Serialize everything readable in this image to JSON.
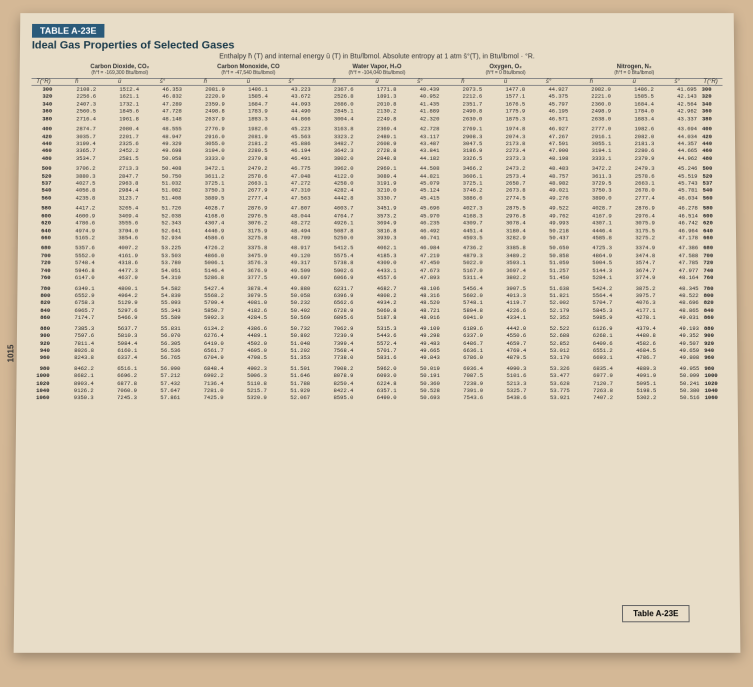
{
  "table_label": "TABLE A-23E",
  "title": "Ideal Gas Properties of Selected Gases",
  "enthalpy_note": "Enthalpy h̄ (T) and internal energy ū (T) in Btu/lbmol. Absolute entropy at 1 atm s̄°(T), in Btu/lbmol · °R.",
  "footer": "Table A-23E",
  "side_label": "1015",
  "gases": [
    {
      "name": "Carbon Dioxide, CO₂",
      "formula": "(h̄°f = -169,300 Btu/lbmol)"
    },
    {
      "name": "Carbon Monoxide, CO",
      "formula": "(h̄°f = -47,540 Btu/lbmol)"
    },
    {
      "name": "Water Vapor, H₂O",
      "formula": "(h̄°f = -104,040 Btu/lbmol)"
    },
    {
      "name": "Oxygen, O₂",
      "formula": "(h̄°f = 0 Btu/lbmol)"
    },
    {
      "name": "Nitrogen, N₂",
      "formula": "(h̄°f = 0 Btu/lbmol)"
    }
  ],
  "col_labels": {
    "tk": "T(°R)",
    "h": "h̄",
    "u": "ū",
    "s": "s̄°"
  },
  "rows": [
    {
      "t": 300,
      "d": [
        [
          "2108.2",
          "1512.4",
          "46.353"
        ],
        [
          "2081.9",
          "1486.1",
          "43.223"
        ],
        [
          "2367.6",
          "1771.8",
          "40.439"
        ],
        [
          "2073.5",
          "1477.8",
          "44.927"
        ],
        [
          "2082.0",
          "1486.2",
          "41.695"
        ]
      ]
    },
    {
      "t": 320,
      "d": [
        [
          "2256.6",
          "1621.1",
          "46.832"
        ],
        [
          "2220.9",
          "1585.4",
          "43.672"
        ],
        [
          "2526.8",
          "1891.3",
          "40.952"
        ],
        [
          "2212.6",
          "1577.1",
          "45.375"
        ],
        [
          "2221.0",
          "1585.5",
          "42.143"
        ]
      ]
    },
    {
      "t": 340,
      "d": [
        [
          "2407.3",
          "1732.1",
          "47.289"
        ],
        [
          "2359.9",
          "1684.7",
          "44.093"
        ],
        [
          "2686.0",
          "2010.8",
          "41.435"
        ],
        [
          "2351.7",
          "1676.5",
          "45.797"
        ],
        [
          "2360.0",
          "1684.4",
          "42.564"
        ]
      ]
    },
    {
      "t": 360,
      "d": [
        [
          "2560.5",
          "1845.6",
          "47.728"
        ],
        [
          "2498.8",
          "1783.9",
          "44.490"
        ],
        [
          "2845.1",
          "2130.2",
          "41.889"
        ],
        [
          "2490.8",
          "1775.9",
          "46.195"
        ],
        [
          "2498.9",
          "1784.0",
          "42.962"
        ]
      ]
    },
    {
      "t": 380,
      "d": [
        [
          "2716.4",
          "1961.8",
          "48.148"
        ],
        [
          "2637.9",
          "1883.3",
          "44.866"
        ],
        [
          "3004.4",
          "2249.8",
          "42.320"
        ],
        [
          "2630.0",
          "1875.3",
          "46.571"
        ],
        [
          "2638.0",
          "1883.4",
          "43.337"
        ]
      ]
    },
    {
      "t": 400,
      "d": [
        [
          "2874.7",
          "2080.4",
          "48.555"
        ],
        [
          "2776.9",
          "1982.6",
          "45.223"
        ],
        [
          "3163.8",
          "2369.4",
          "42.728"
        ],
        [
          "2769.1",
          "1974.8",
          "46.927"
        ],
        [
          "2777.0",
          "1982.6",
          "43.694"
        ]
      ]
    },
    {
      "t": 420,
      "d": [
        [
          "3035.7",
          "2201.7",
          "48.947"
        ],
        [
          "2916.0",
          "2081.9",
          "45.563"
        ],
        [
          "3323.2",
          "2489.1",
          "43.117"
        ],
        [
          "2908.3",
          "2074.3",
          "47.267"
        ],
        [
          "2916.1",
          "2082.0",
          "44.034"
        ]
      ]
    },
    {
      "t": 440,
      "d": [
        [
          "3199.4",
          "2325.6",
          "49.329"
        ],
        [
          "3055.0",
          "2181.2",
          "45.886"
        ],
        [
          "3482.7",
          "2608.9",
          "43.487"
        ],
        [
          "3047.5",
          "2173.8",
          "47.591"
        ],
        [
          "3055.1",
          "2181.3",
          "44.357"
        ]
      ]
    },
    {
      "t": 460,
      "d": [
        [
          "3365.7",
          "2452.2",
          "49.698"
        ],
        [
          "3194.0",
          "2280.5",
          "46.194"
        ],
        [
          "3642.3",
          "2728.8",
          "43.841"
        ],
        [
          "3186.9",
          "2273.4",
          "47.900"
        ],
        [
          "3194.1",
          "2280.6",
          "44.665"
        ]
      ]
    },
    {
      "t": 480,
      "d": [
        [
          "3534.7",
          "2581.5",
          "50.058"
        ],
        [
          "3333.0",
          "2379.8",
          "46.491"
        ],
        [
          "3802.0",
          "2848.8",
          "44.182"
        ],
        [
          "3326.5",
          "2373.3",
          "48.198"
        ],
        [
          "3333.1",
          "2379.9",
          "44.962"
        ]
      ]
    },
    {
      "t": 500,
      "d": [
        [
          "3706.2",
          "2713.3",
          "50.408"
        ],
        [
          "3472.1",
          "2479.2",
          "46.775"
        ],
        [
          "3962.0",
          "2969.1",
          "44.508"
        ],
        [
          "3466.2",
          "2473.2",
          "48.483"
        ],
        [
          "3472.2",
          "2479.3",
          "45.246"
        ]
      ]
    },
    {
      "t": 520,
      "d": [
        [
          "3880.3",
          "2847.7",
          "50.750"
        ],
        [
          "3611.2",
          "2578.6",
          "47.048"
        ],
        [
          "4122.0",
          "3089.4",
          "44.821"
        ],
        [
          "3606.1",
          "2573.4",
          "48.757"
        ],
        [
          "3611.3",
          "2578.6",
          "45.519"
        ]
      ]
    },
    {
      "t": 537,
      "d": [
        [
          "4027.5",
          "2963.8",
          "51.032"
        ],
        [
          "3725.1",
          "2663.1",
          "47.272"
        ],
        [
          "4258.0",
          "3191.9",
          "45.079"
        ],
        [
          "3725.1",
          "2658.7",
          "48.982"
        ],
        [
          "3729.5",
          "2663.1",
          "45.743"
        ]
      ]
    },
    {
      "t": 540,
      "d": [
        [
          "4056.8",
          "2984.4",
          "51.082"
        ],
        [
          "3750.3",
          "2677.9",
          "47.310"
        ],
        [
          "4282.4",
          "3210.0",
          "45.124"
        ],
        [
          "3746.2",
          "2673.8",
          "49.021"
        ],
        [
          "3750.3",
          "2678.0",
          "45.781"
        ]
      ]
    },
    {
      "t": 560,
      "d": [
        [
          "4235.8",
          "3123.7",
          "51.408"
        ],
        [
          "3889.5",
          "2777.4",
          "47.563"
        ],
        [
          "4442.8",
          "3330.7",
          "45.415"
        ],
        [
          "3886.6",
          "2774.5",
          "49.276"
        ],
        [
          "3890.0",
          "2777.4",
          "46.034"
        ]
      ]
    },
    {
      "t": 580,
      "d": [
        [
          "4417.2",
          "3265.4",
          "51.726"
        ],
        [
          "4028.7",
          "2876.9",
          "47.807"
        ],
        [
          "4603.7",
          "3451.9",
          "45.696"
        ],
        [
          "4027.3",
          "2875.5",
          "49.522"
        ],
        [
          "4028.7",
          "2876.9",
          "46.278"
        ]
      ]
    },
    {
      "t": 600,
      "d": [
        [
          "4600.9",
          "3409.4",
          "52.038"
        ],
        [
          "4168.0",
          "2976.5",
          "48.044"
        ],
        [
          "4764.7",
          "3573.2",
          "45.970"
        ],
        [
          "4168.3",
          "2976.8",
          "49.762"
        ],
        [
          "4167.9",
          "2976.4",
          "46.514"
        ]
      ]
    },
    {
      "t": 620,
      "d": [
        [
          "4786.6",
          "3555.6",
          "52.343"
        ],
        [
          "4307.4",
          "3076.2",
          "48.272"
        ],
        [
          "4926.1",
          "3694.9",
          "46.235"
        ],
        [
          "4309.7",
          "3078.4",
          "49.993"
        ],
        [
          "4307.1",
          "3075.9",
          "46.742"
        ]
      ]
    },
    {
      "t": 640,
      "d": [
        [
          "4974.9",
          "3704.0",
          "52.641"
        ],
        [
          "4446.9",
          "3175.9",
          "48.494"
        ],
        [
          "5087.8",
          "3816.8",
          "46.492"
        ],
        [
          "4451.4",
          "3180.4",
          "50.218"
        ],
        [
          "4446.4",
          "3175.5",
          "46.964"
        ]
      ]
    },
    {
      "t": 660,
      "d": [
        [
          "5165.2",
          "3854.6",
          "52.934"
        ],
        [
          "4586.6",
          "3275.8",
          "48.709"
        ],
        [
          "5250.0",
          "3939.3",
          "46.741"
        ],
        [
          "4593.5",
          "3282.9",
          "50.437"
        ],
        [
          "4585.8",
          "3275.2",
          "47.178"
        ]
      ]
    },
    {
      "t": 680,
      "d": [
        [
          "5357.6",
          "4007.2",
          "53.225"
        ],
        [
          "4726.2",
          "3375.8",
          "48.917"
        ],
        [
          "5412.5",
          "4062.1",
          "46.984"
        ],
        [
          "4736.2",
          "3385.8",
          "50.650"
        ],
        [
          "4725.3",
          "3374.9",
          "47.386"
        ]
      ]
    },
    {
      "t": 700,
      "d": [
        [
          "5552.0",
          "4161.9",
          "53.503"
        ],
        [
          "4866.0",
          "3475.9",
          "49.120"
        ],
        [
          "5575.4",
          "4185.3",
          "47.219"
        ],
        [
          "4879.3",
          "3489.2",
          "50.858"
        ],
        [
          "4864.9",
          "3474.8",
          "47.588"
        ]
      ]
    },
    {
      "t": 720,
      "d": [
        [
          "5748.4",
          "4318.6",
          "53.780"
        ],
        [
          "5006.1",
          "3576.3",
          "49.317"
        ],
        [
          "5738.8",
          "4309.0",
          "47.450"
        ],
        [
          "5022.9",
          "3593.1",
          "51.059"
        ],
        [
          "5004.5",
          "3574.7",
          "47.785"
        ]
      ]
    },
    {
      "t": 740,
      "d": [
        [
          "5946.8",
          "4477.3",
          "54.051"
        ],
        [
          "5146.4",
          "3676.9",
          "49.509"
        ],
        [
          "5902.6",
          "4433.1",
          "47.673"
        ],
        [
          "5167.0",
          "3697.4",
          "51.257"
        ],
        [
          "5144.3",
          "3674.7",
          "47.977"
        ]
      ]
    },
    {
      "t": 760,
      "d": [
        [
          "6147.0",
          "4637.9",
          "54.319"
        ],
        [
          "5286.8",
          "3777.5",
          "49.697"
        ],
        [
          "6066.9",
          "4557.6",
          "47.893"
        ],
        [
          "5311.4",
          "3802.2",
          "51.450"
        ],
        [
          "5284.1",
          "3774.9",
          "48.164"
        ]
      ]
    },
    {
      "t": 780,
      "d": [
        [
          "6349.1",
          "4800.1",
          "54.582"
        ],
        [
          "5427.4",
          "3878.4",
          "49.880"
        ],
        [
          "6231.7",
          "4682.7",
          "48.106"
        ],
        [
          "5456.4",
          "3907.5",
          "51.638"
        ],
        [
          "5424.2",
          "3875.2",
          "48.345"
        ]
      ]
    },
    {
      "t": 800,
      "d": [
        [
          "6552.9",
          "4964.2",
          "54.839"
        ],
        [
          "5568.2",
          "3979.5",
          "50.058"
        ],
        [
          "6396.9",
          "4808.2",
          "48.316"
        ],
        [
          "5602.0",
          "4013.3",
          "51.821"
        ],
        [
          "5564.4",
          "3975.7",
          "48.522"
        ]
      ]
    },
    {
      "t": 820,
      "d": [
        [
          "6758.3",
          "5129.9",
          "55.093"
        ],
        [
          "5709.4",
          "4081.0",
          "50.232"
        ],
        [
          "6562.6",
          "4934.2",
          "48.520"
        ],
        [
          "5748.1",
          "4119.7",
          "52.002"
        ],
        [
          "5704.7",
          "4076.3",
          "48.696"
        ]
      ]
    },
    {
      "t": 840,
      "d": [
        [
          "6965.7",
          "5297.6",
          "55.343"
        ],
        [
          "5850.7",
          "4182.6",
          "50.402"
        ],
        [
          "6728.9",
          "5060.8",
          "48.721"
        ],
        [
          "5894.8",
          "4226.6",
          "52.179"
        ],
        [
          "5845.3",
          "4177.1",
          "48.865"
        ]
      ]
    },
    {
      "t": 860,
      "d": [
        [
          "7174.7",
          "5466.9",
          "55.589"
        ],
        [
          "5992.3",
          "4284.5",
          "50.569"
        ],
        [
          "6895.6",
          "5187.8",
          "48.916"
        ],
        [
          "6041.9",
          "4334.1",
          "52.352"
        ],
        [
          "5985.9",
          "4278.1",
          "49.031"
        ]
      ]
    },
    {
      "t": 880,
      "d": [
        [
          "7385.3",
          "5637.7",
          "55.831"
        ],
        [
          "6134.2",
          "4386.6",
          "50.732"
        ],
        [
          "7062.9",
          "5315.3",
          "49.109"
        ],
        [
          "6189.6",
          "4442.0",
          "52.522"
        ],
        [
          "6126.9",
          "4379.4",
          "49.193"
        ]
      ]
    },
    {
      "t": 900,
      "d": [
        [
          "7597.6",
          "5810.3",
          "56.070"
        ],
        [
          "6276.4",
          "4489.1",
          "50.892"
        ],
        [
          "7230.9",
          "5443.6",
          "49.298"
        ],
        [
          "6337.9",
          "4550.6",
          "52.688"
        ],
        [
          "6268.1",
          "4480.8",
          "49.352"
        ]
      ]
    },
    {
      "t": 920,
      "d": [
        [
          "7811.4",
          "5984.4",
          "56.305"
        ],
        [
          "6419.0",
          "4592.0",
          "51.048"
        ],
        [
          "7399.4",
          "5572.4",
          "49.483"
        ],
        [
          "6486.7",
          "4659.7",
          "52.852"
        ],
        [
          "6409.6",
          "4582.6",
          "49.507"
        ]
      ]
    },
    {
      "t": 940,
      "d": [
        [
          "8026.8",
          "6160.1",
          "56.536"
        ],
        [
          "6561.7",
          "4695.0",
          "51.202"
        ],
        [
          "7568.4",
          "5701.7",
          "49.665"
        ],
        [
          "6636.1",
          "4769.4",
          "53.012"
        ],
        [
          "6551.2",
          "4684.5",
          "49.659"
        ]
      ]
    },
    {
      "t": 960,
      "d": [
        [
          "8243.8",
          "6337.4",
          "56.765"
        ],
        [
          "6704.9",
          "4798.5",
          "51.353"
        ],
        [
          "7738.0",
          "5831.6",
          "49.843"
        ],
        [
          "6786.0",
          "4879.5",
          "53.170"
        ],
        [
          "6693.1",
          "4786.7",
          "49.808"
        ]
      ]
    },
    {
      "t": 980,
      "d": [
        [
          "8462.2",
          "6516.1",
          "56.990"
        ],
        [
          "6848.4",
          "4902.3",
          "51.501"
        ],
        [
          "7908.2",
          "5962.0",
          "50.019"
        ],
        [
          "6936.4",
          "4990.3",
          "53.326"
        ],
        [
          "6835.4",
          "4889.3",
          "49.955"
        ]
      ]
    },
    {
      "t": 1000,
      "d": [
        [
          "8682.1",
          "6696.2",
          "57.212"
        ],
        [
          "6992.2",
          "5006.3",
          "51.646"
        ],
        [
          "8078.9",
          "6093.0",
          "50.191"
        ],
        [
          "7087.5",
          "5101.6",
          "53.477"
        ],
        [
          "6977.9",
          "4991.9",
          "50.099"
        ]
      ]
    },
    {
      "t": 1020,
      "d": [
        [
          "8903.4",
          "6877.8",
          "57.432"
        ],
        [
          "7136.4",
          "5110.8",
          "51.788"
        ],
        [
          "8250.4",
          "6224.8",
          "50.360"
        ],
        [
          "7238.9",
          "5213.3",
          "53.628"
        ],
        [
          "7120.7",
          "5095.1",
          "50.241"
        ]
      ]
    },
    {
      "t": 1040,
      "d": [
        [
          "9126.2",
          "7060.9",
          "57.647"
        ],
        [
          "7281.0",
          "5215.7",
          "51.929"
        ],
        [
          "8422.4",
          "6357.1",
          "50.528"
        ],
        [
          "7391.0",
          "5325.7",
          "53.775"
        ],
        [
          "7263.8",
          "5198.5",
          "50.380"
        ]
      ]
    },
    {
      "t": 1060,
      "d": [
        [
          "9350.3",
          "7245.3",
          "57.861"
        ],
        [
          "7425.9",
          "5320.9",
          "52.067"
        ],
        [
          "8595.0",
          "6490.0",
          "50.693"
        ],
        [
          "7543.6",
          "5438.6",
          "53.921"
        ],
        [
          "7407.2",
          "5302.2",
          "50.516"
        ]
      ]
    }
  ]
}
